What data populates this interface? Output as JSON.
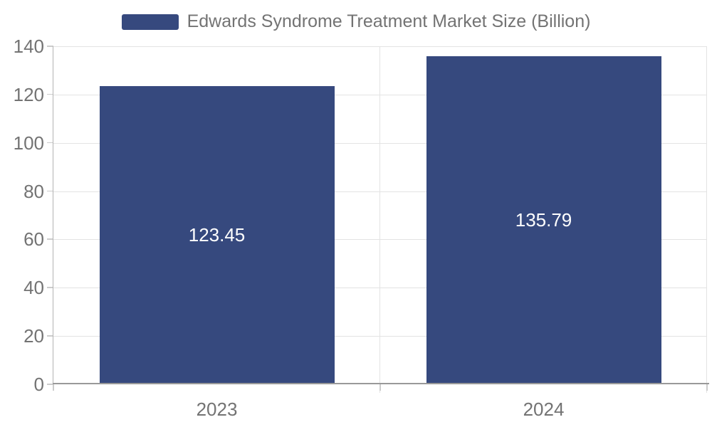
{
  "chart_data": {
    "type": "bar",
    "title": "Edwards Syndrome Treatment Market Size (Billion)",
    "categories": [
      "2023",
      "2024"
    ],
    "series": [
      {
        "name": "Edwards Syndrome Treatment Market Size (Billion)",
        "values": [
          123.45,
          135.79
        ]
      }
    ],
    "value_labels": [
      "123.45",
      "135.79"
    ],
    "xlabel": "",
    "ylabel": "",
    "ylim": [
      0,
      140
    ],
    "yticks": [
      0,
      20,
      40,
      60,
      80,
      100,
      120,
      140
    ],
    "grid": true,
    "legend_position": "top",
    "colors": {
      "bar": "#36497e",
      "value_label": "#ffffff",
      "tick_label": "#737373",
      "legend_text": "#737373",
      "gridline": "#e3e3e3",
      "y_axis_line": "#b3b3b3",
      "x_axis_line": "#999999",
      "tick_mark": "#cccccc",
      "background": "#ffffff"
    }
  }
}
